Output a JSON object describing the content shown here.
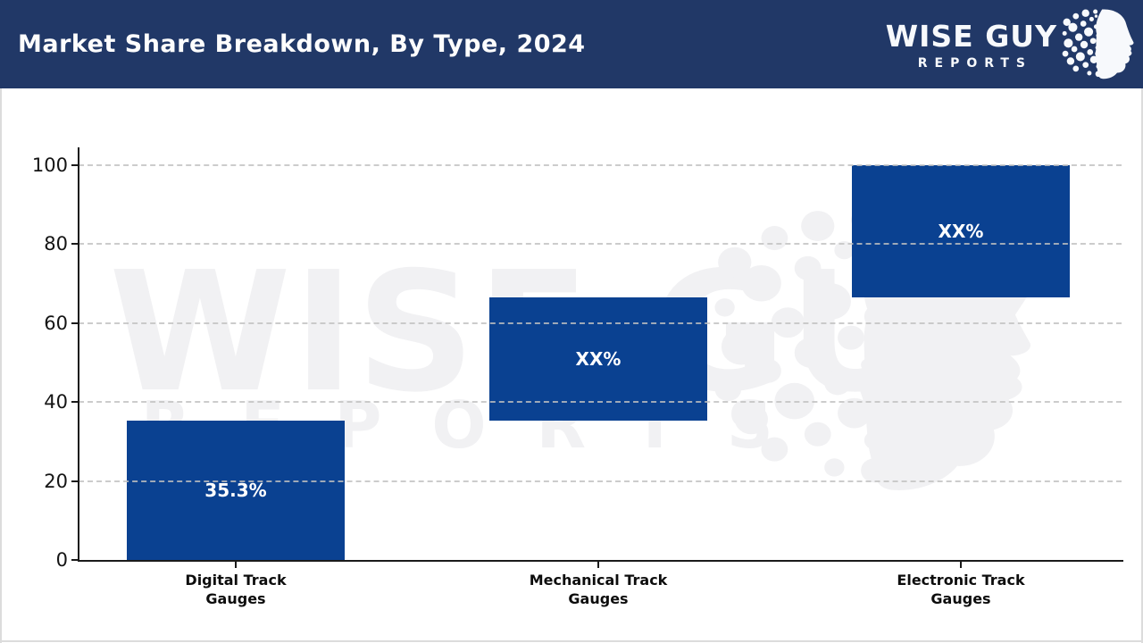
{
  "header": {
    "bg": "#213867",
    "title": "Market Share Breakdown, By Type, 2024",
    "logo": {
      "line1": "WISE GUY",
      "line2": "REPORTS"
    }
  },
  "watermark": {
    "line1": "WISE GUY",
    "line2": "REPORTS"
  },
  "chart_data": {
    "type": "bar",
    "variant": "waterfall",
    "title": "Market Share Breakdown, By Type, 2024",
    "categories": [
      "Digital Track Gauges",
      "Mechanical Track Gauges",
      "Electronic Track Gauges"
    ],
    "category_lines": [
      [
        "Digital Track",
        "Gauges"
      ],
      [
        "Mechanical Track",
        "Gauges"
      ],
      [
        "Electronic Track",
        "Gauges"
      ]
    ],
    "segments": [
      {
        "category": "Digital Track Gauges",
        "start": 0,
        "end": 35.3,
        "label": "35.3%"
      },
      {
        "category": "Mechanical Track Gauges",
        "start": 35.3,
        "end": 66.5,
        "label": "XX%"
      },
      {
        "category": "Electronic Track Gauges",
        "start": 66.5,
        "end": 100,
        "label": "XX%"
      }
    ],
    "ylim": [
      0,
      100
    ],
    "yticks": [
      0,
      20,
      40,
      60,
      80,
      100
    ],
    "grid": true,
    "grid_style": "dashed",
    "legend": "none",
    "bar_color": "#0a4191",
    "bar_label_color": "#ffffff",
    "axis_color": "#1a1a1a",
    "xlabel": "",
    "ylabel": ""
  }
}
